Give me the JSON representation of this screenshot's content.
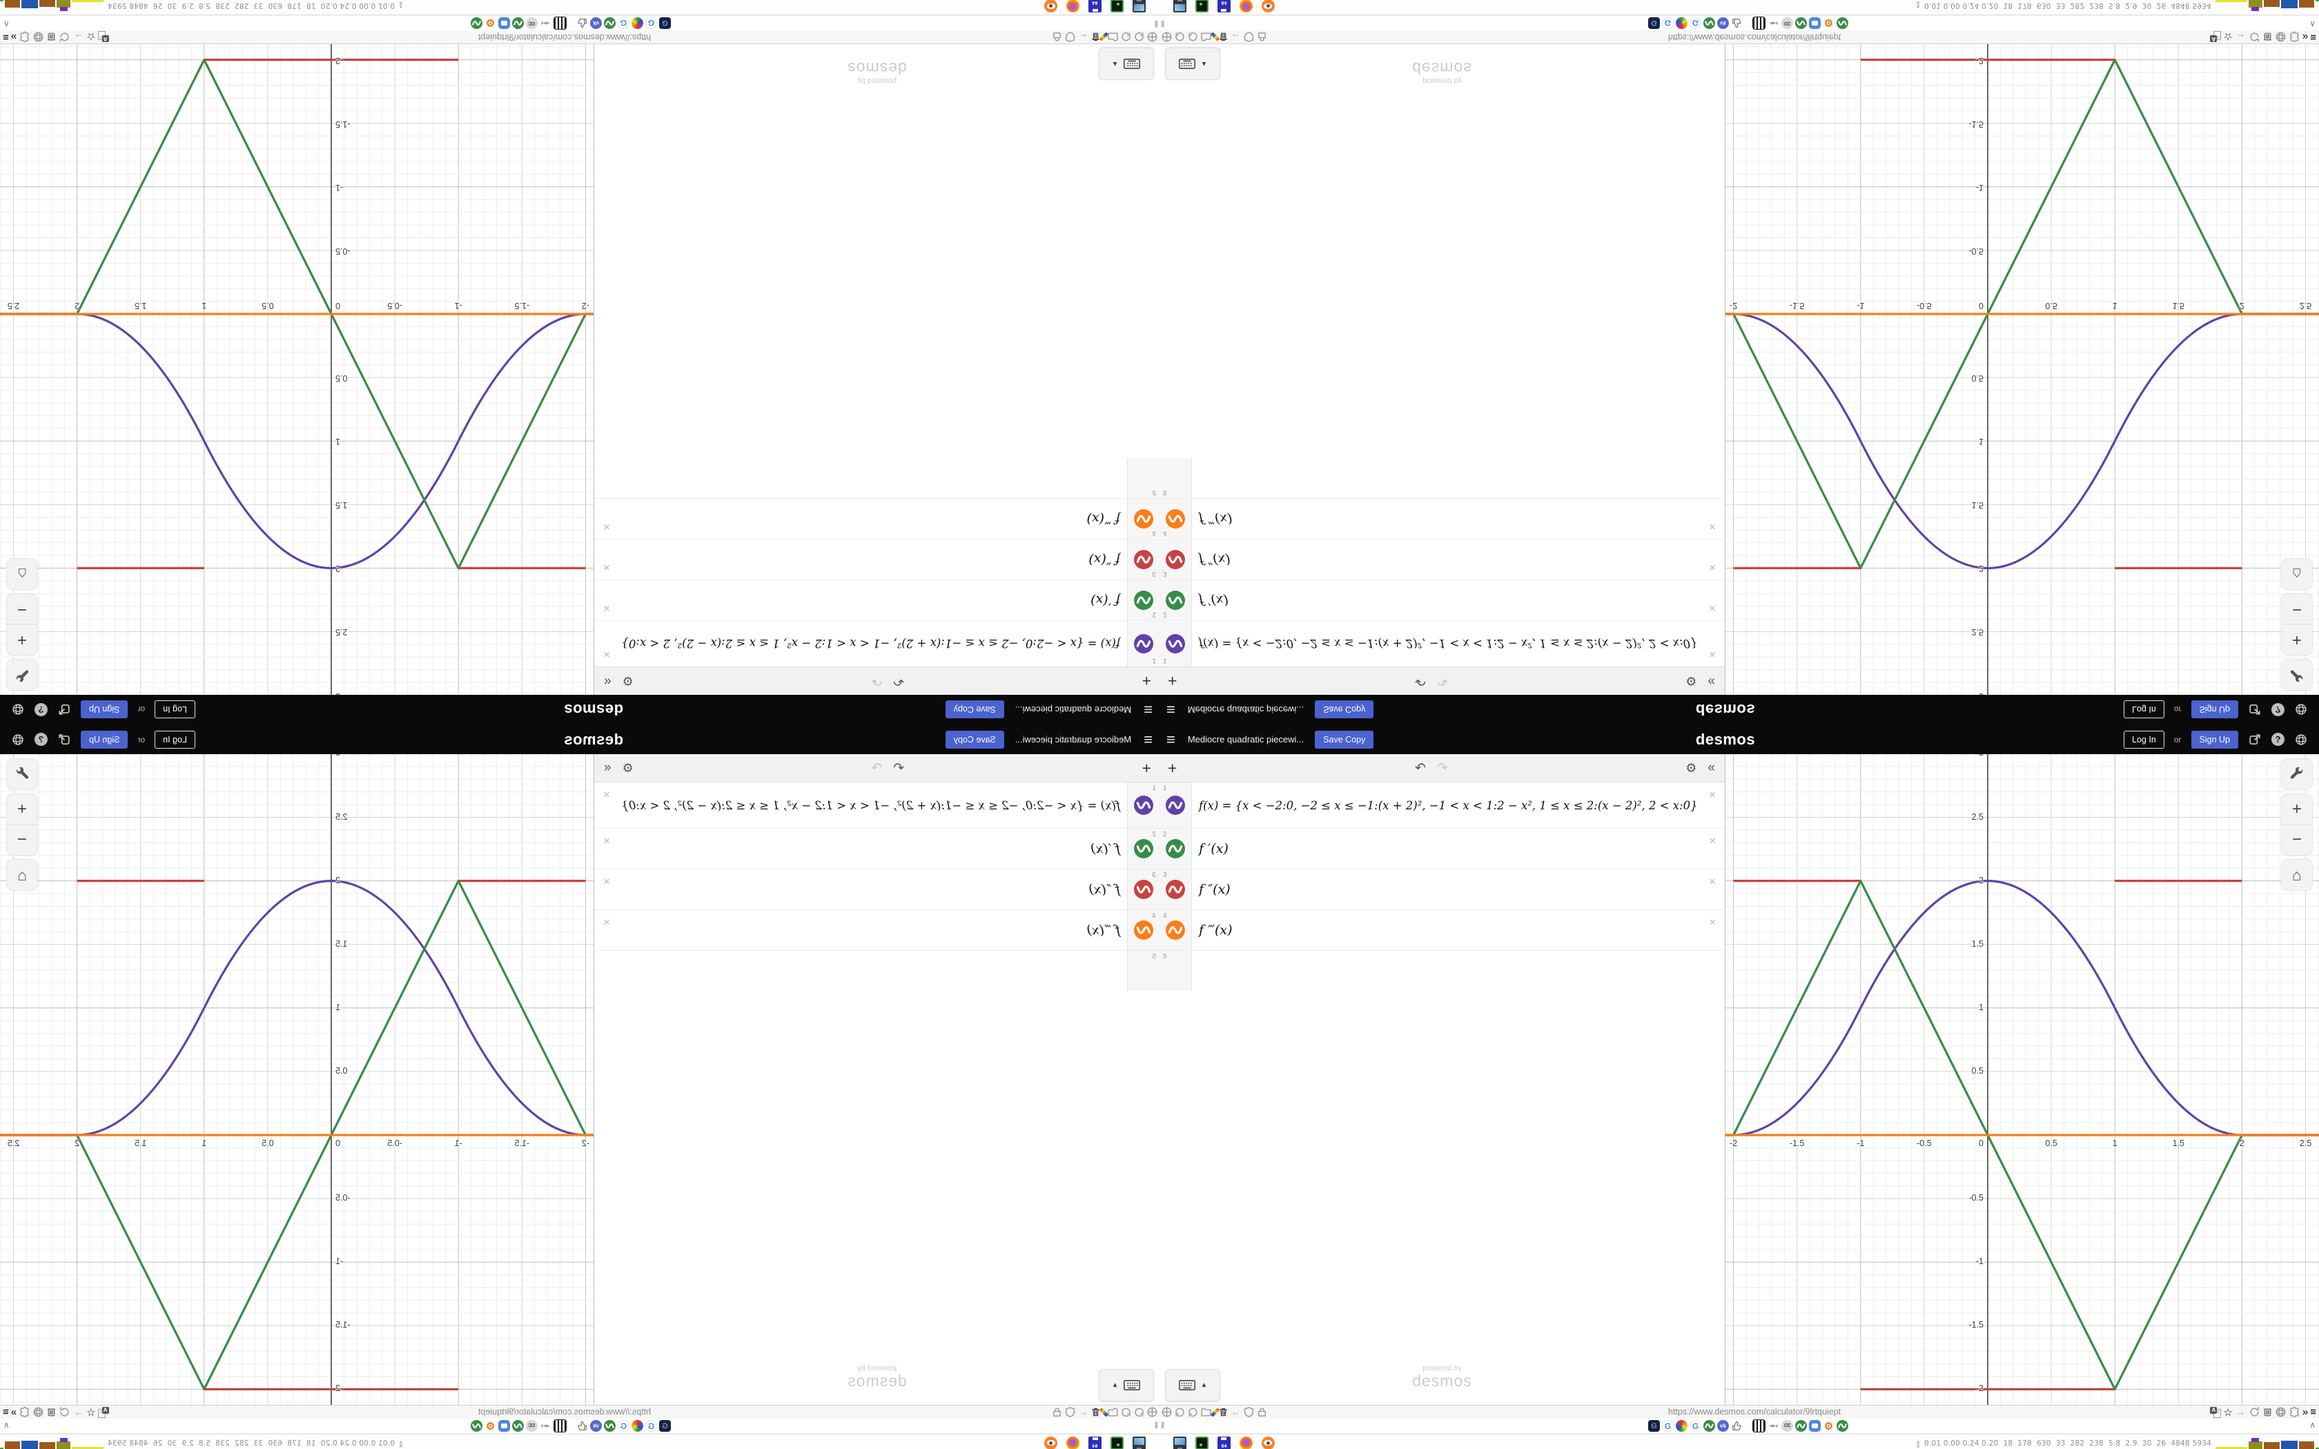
{
  "header": {
    "title": "Mediocre quadratic piecewi...",
    "save_copy_label": "Save Copy",
    "logo": "desmos",
    "login_label": "Log In",
    "or_label": "or",
    "signup_label": "Sign Up",
    "accent_blue": "#4a63cf",
    "right_icons": [
      "share-icon",
      "help-icon",
      "globe-icon"
    ]
  },
  "toolbar": {
    "add_label": "+",
    "undo_label": "↶",
    "redo_label": "↷",
    "gear_icon": "⚙",
    "collapse_label": "«"
  },
  "expressions": {
    "close_label": "×",
    "rows": [
      {
        "number": "1",
        "color": "#6042a6",
        "latex": "f(x) = {x < −2:0, −2 ≤ x ≤ −1:(x + 2)², −1 < x < 1:2 − x², 1 ≤ x ≤ 2:(x − 2)², 2 < x:0}"
      },
      {
        "number": "2",
        "color": "#388c46",
        "latex": "f ′(x)"
      },
      {
        "number": "3",
        "color": "#c74440",
        "latex": "f ″(x)"
      },
      {
        "number": "4",
        "color": "#fa7e19",
        "latex": "f ‴(x)"
      }
    ],
    "next_row_number": "5"
  },
  "panel": {
    "watermark_line1": "powered by",
    "watermark_line2": "desmos",
    "keyboard_caret": "▲"
  },
  "graph_controls": {
    "icons": [
      "wrench-icon",
      "zoom-in-button",
      "zoom-out-button",
      "home-button"
    ],
    "plus": "+",
    "minus": "−",
    "home": "⌂"
  },
  "chart_data": {
    "type": "line",
    "title": "Mediocre quadratic piecewise",
    "xlabel": "x",
    "ylabel": "y",
    "xlim": [
      -2.07,
      2.61
    ],
    "ylim": [
      -2.12,
      3.0
    ],
    "grid": true,
    "major_step": 0.5,
    "minor_step": 0.1,
    "x_tick_labels": [
      "-2",
      "-1.5",
      "-1",
      "-0.5",
      "0.5",
      "1",
      "1.5",
      "2",
      "2.5"
    ],
    "y_tick_labels": [
      "3",
      "2.5",
      "2",
      "1.5",
      "1",
      "0.5",
      "-0.5",
      "-1",
      "-1.5",
      "-2"
    ],
    "origin_label": "0",
    "series": [
      {
        "name": "f(x)",
        "color": "#6042a6",
        "path": [
          [
            "M",
            -2.07,
            0
          ],
          [
            "L",
            -2,
            0
          ],
          [
            "Q",
            -1.5,
            0,
            -1,
            1
          ],
          [
            "Q",
            0,
            3,
            1,
            1
          ],
          [
            "Q",
            1.5,
            0,
            2,
            0
          ],
          [
            "L",
            2.61,
            0
          ]
        ],
        "key_points": [
          [
            -2,
            0
          ],
          [
            -1,
            1
          ],
          [
            0,
            2
          ],
          [
            1,
            1
          ],
          [
            2,
            0
          ]
        ]
      },
      {
        "name": "f′(x)",
        "color": "#388c46",
        "path": [
          [
            "M",
            -2.07,
            0
          ],
          [
            "L",
            -2,
            0
          ],
          [
            "L",
            -1,
            2
          ],
          [
            "L",
            1,
            -2
          ],
          [
            "L",
            2,
            0
          ],
          [
            "L",
            2.61,
            0
          ]
        ],
        "key_points": [
          [
            -2,
            0
          ],
          [
            -1,
            2
          ],
          [
            1,
            -2
          ],
          [
            2,
            0
          ]
        ]
      },
      {
        "name": "f″(x)",
        "color": "#c74440",
        "path": [
          [
            "M",
            -2.07,
            0
          ],
          [
            "L",
            -2,
            0
          ],
          [
            "M",
            -2,
            2
          ],
          [
            "L",
            -1,
            2
          ],
          [
            "M",
            -1,
            -2
          ],
          [
            "L",
            1,
            -2
          ],
          [
            "M",
            1,
            2
          ],
          [
            "L",
            2,
            2
          ],
          [
            "M",
            2,
            0
          ],
          [
            "L",
            2.61,
            0
          ]
        ],
        "key_points": [
          [
            -2,
            2
          ],
          [
            -1,
            2
          ],
          [
            -1,
            -2
          ],
          [
            1,
            -2
          ],
          [
            1,
            2
          ],
          [
            2,
            2
          ]
        ]
      },
      {
        "name": "f‴(x)",
        "color": "#fa7e19",
        "path": [
          [
            "M",
            -2.07,
            0
          ],
          [
            "L",
            2.61,
            0
          ]
        ],
        "key_points": [
          [
            -2.07,
            0
          ],
          [
            2.61,
            0
          ]
        ]
      }
    ]
  },
  "address_bar": {
    "url": "https://www.desmos.com/calculator/9lrtquiept",
    "left_icons": [
      "globe-icon",
      "history-icon",
      "history-icon",
      "folder-icon",
      "pin-icon",
      "trash-icon",
      "back-arrow-icon",
      "shield-icon",
      "lock-icon"
    ],
    "right_icons": [
      "translate-icon",
      "star-icon",
      "forward-arrow-icon",
      "reload-icon",
      "jar-icon",
      "sphere-icon",
      "puzzle-icon",
      "chevron-double-icon",
      "menu-icon"
    ]
  },
  "bookmarks": {
    "pause_label": "‖",
    "caret_label": "∧",
    "icons": [
      "gimp-icon",
      "google-icon",
      "color-wheel-icon",
      "google-icon",
      "desmos-icon",
      "vk-icon",
      "thumbs-up-icon",
      "spacer",
      "barrel-icon",
      "fish-icon",
      "cc-icon",
      "desmos-icon",
      "chat-icon",
      "gear-orange-icon",
      "desmos-icon"
    ]
  },
  "taskbar": {
    "app_icons": [
      "monitor-icon",
      "drive-icon",
      "floppy-64-icon",
      "firefox-icon",
      "blender-icon"
    ],
    "stats_text": "0.01 0.00 0.24 0.20  18  178  630  33  282  238  5.8  2.9  30  26  4848 5934",
    "sparklines": [
      {
        "color": "#e6e02e",
        "w": 46,
        "h": 3
      },
      {
        "color": "#8f8f1c",
        "w": 20,
        "h": 11,
        "spike": "#7a2bbd"
      },
      {
        "color": "#995a1e",
        "w": 23,
        "h": 10
      },
      {
        "color": "#2356ae",
        "w": 24,
        "h": 12
      },
      {
        "color": "#995a1e",
        "w": 22,
        "h": 11
      },
      {
        "color": "#3aa83a",
        "w": 11,
        "h": 2
      },
      {
        "color": "#b32f2f",
        "w": 13,
        "h": 6,
        "spike": "#3aa83a"
      }
    ]
  }
}
